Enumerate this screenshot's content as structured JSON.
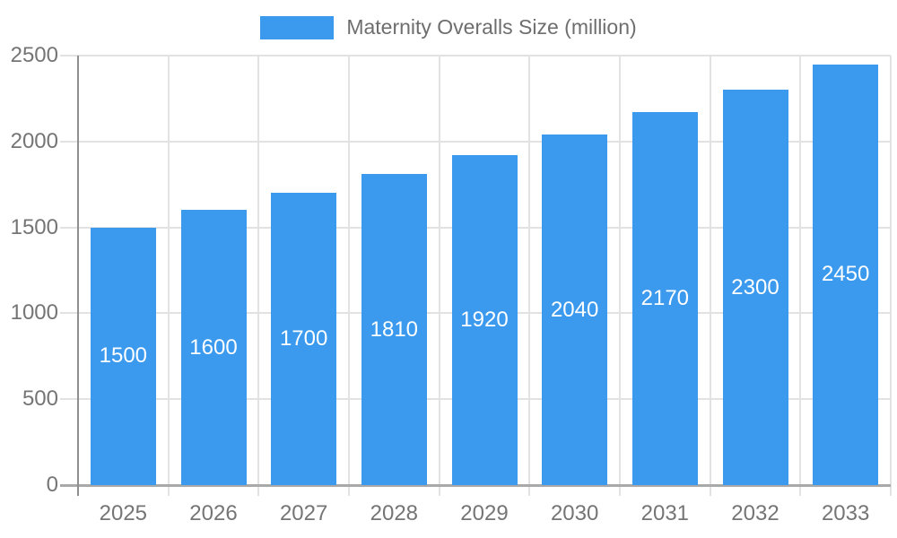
{
  "legend": {
    "label": "Maternity Overalls Size (million)"
  },
  "colors": {
    "bar": "#3b99ee",
    "grid": "#e2e2e2",
    "y_axis_line": "#8f8f8f",
    "baseline": "#a9a9a9",
    "axis_text": "#757575",
    "legend_text": "#6e6e6e",
    "value_label_text": "#ffffff",
    "background": "#ffffff"
  },
  "chart_data": {
    "type": "bar",
    "title": "Maternity Overalls Size (million)",
    "categories": [
      "2025",
      "2026",
      "2027",
      "2028",
      "2029",
      "2030",
      "2031",
      "2032",
      "2033"
    ],
    "values": [
      1500,
      1600,
      1700,
      1810,
      1920,
      2040,
      2170,
      2300,
      2450
    ],
    "series": [
      {
        "name": "Maternity Overalls Size (million)",
        "values": [
          1500,
          1600,
          1700,
          1810,
          1920,
          2040,
          2170,
          2300,
          2450
        ]
      }
    ],
    "xlabel": "",
    "ylabel": "",
    "ylim": [
      0,
      2500
    ],
    "yticks": [
      0,
      500,
      1000,
      1500,
      2000,
      2500
    ],
    "grid": true,
    "legend_position": "top-center",
    "value_label_position": "inside-middle"
  }
}
